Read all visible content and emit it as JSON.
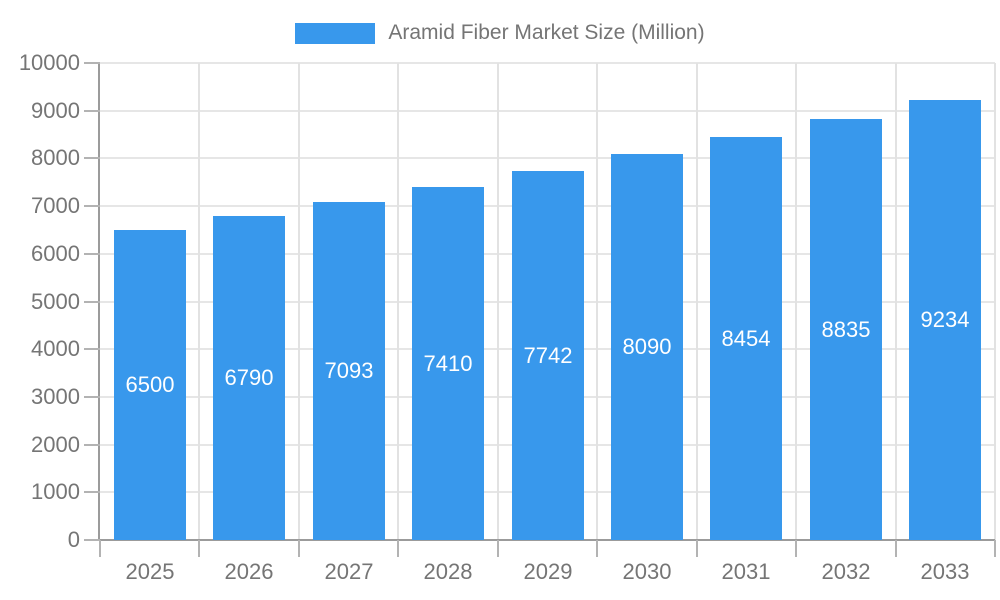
{
  "legend": {
    "label": "Aramid Fiber Market Size (Million)",
    "swatch_color": "#3898ec"
  },
  "chart_data": {
    "type": "bar",
    "title": "Aramid Fiber Market Size (Million)",
    "categories": [
      "2025",
      "2026",
      "2027",
      "2028",
      "2029",
      "2030",
      "2031",
      "2032",
      "2033"
    ],
    "values": [
      6500,
      6790,
      7093,
      7410,
      7742,
      8090,
      8454,
      8835,
      9234
    ],
    "xlabel": "",
    "ylabel": "",
    "ylim": [
      0,
      10000
    ],
    "y_tick_step": 1000,
    "y_ticks": [
      0,
      1000,
      2000,
      3000,
      4000,
      5000,
      6000,
      7000,
      8000,
      9000,
      10000
    ],
    "grid": true,
    "legend_position": "top-center",
    "bar_color": "#3898ec",
    "bar_label_color": "#ffffff",
    "axis_color": "#9b9b9b",
    "grid_color": "#e6e6e6",
    "tick_color": "#b3b3b3",
    "tick_label_color": "#757575"
  }
}
